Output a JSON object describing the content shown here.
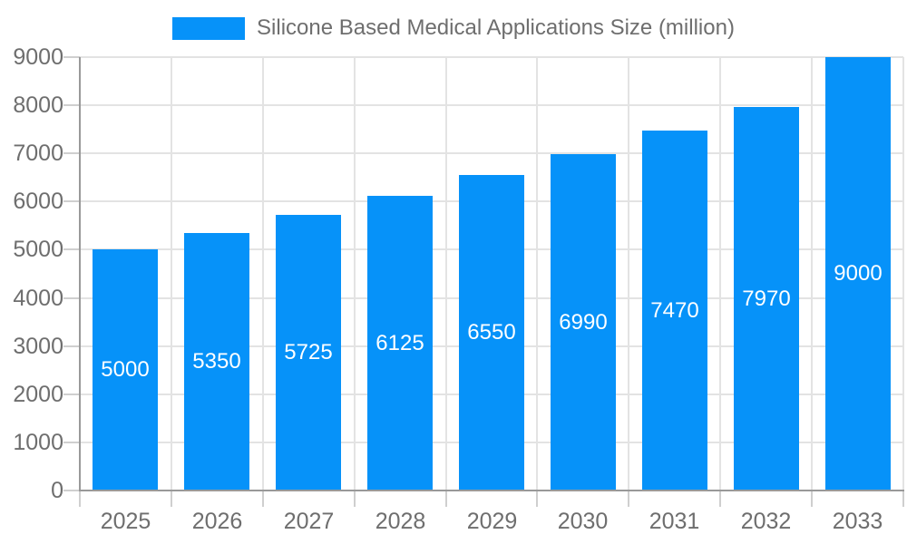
{
  "chart_data": {
    "type": "bar",
    "title": "Silicone Based Medical Applications Size (million)",
    "legend_label": "Silicone Based Medical Applications Size (million)",
    "legend_position": "top",
    "categories": [
      "2025",
      "2026",
      "2027",
      "2028",
      "2029",
      "2030",
      "2031",
      "2032",
      "2033"
    ],
    "values": [
      5000,
      5350,
      5725,
      6125,
      6550,
      6990,
      7470,
      7970,
      9000
    ],
    "value_labels": [
      "5000",
      "5350",
      "5725",
      "6125",
      "6550",
      "6990",
      "7470",
      "7970",
      "9000"
    ],
    "xlabel": "",
    "ylabel": "",
    "ylim": [
      0,
      9000
    ],
    "ytick_step": 1000,
    "yticks": [
      0,
      1000,
      2000,
      3000,
      4000,
      5000,
      6000,
      7000,
      8000,
      9000
    ],
    "ytick_labels": [
      "0",
      "1000",
      "2000",
      "3000",
      "4000",
      "5000",
      "6000",
      "7000",
      "8000",
      "9000"
    ],
    "grid": true,
    "legend": true,
    "colors": {
      "bar": "#0692f9",
      "value_label": "#ffffff",
      "grid_line": "#e3e3e3",
      "tick_line": "#cfcfcf",
      "axis_line": "#999999",
      "tick_text": "#6e6e6e",
      "legend_text": "#6e6e6e",
      "background": "#ffffff"
    }
  }
}
